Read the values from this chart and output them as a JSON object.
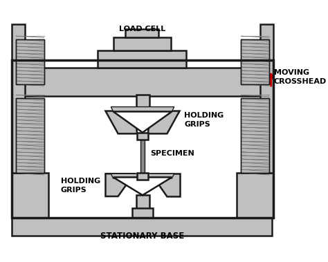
{
  "background_color": "#ffffff",
  "gray_fill": "#c0c0c0",
  "gray_dark": "#a0a0a0",
  "white_fill": "#ffffff",
  "dark_outline": "#1a1a1a",
  "text_color": "#000000",
  "arrow_color": "#cc0000",
  "load_cell_text": "LOAD CELL",
  "moving_crosshead_text": "MOVING\nCROSSHEAD",
  "holding_grips_upper_text": "HOLDING\nGRIPS",
  "holding_grips_lower_text": "HOLDING\nGRIPS",
  "specimen_text": "SPECIMEN",
  "base_text": "STATIONARY BASE"
}
